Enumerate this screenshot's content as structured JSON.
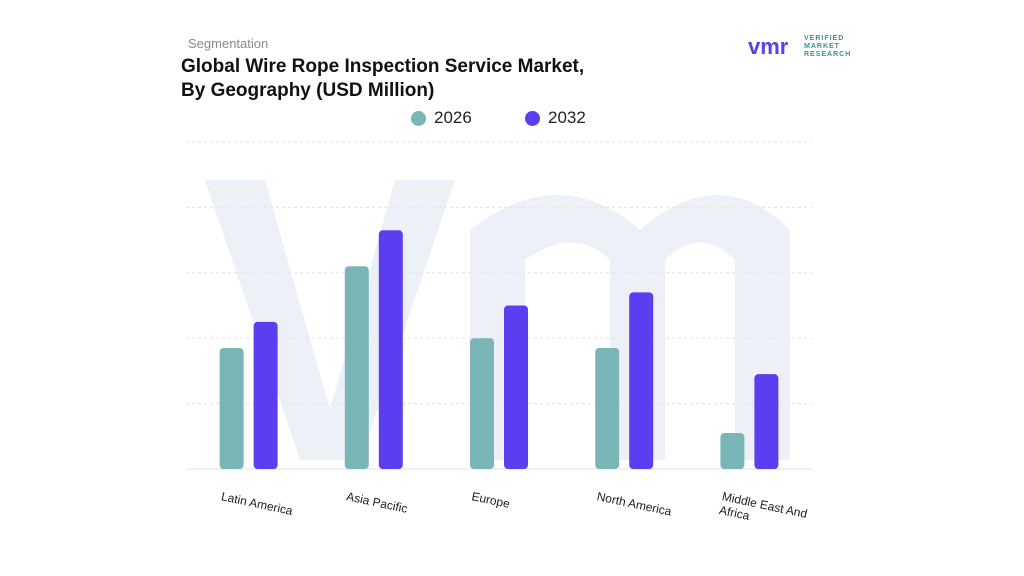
{
  "header": {
    "segment_label": "Segmentation",
    "title_line1": "Global Wire Rope Inspection Service Market,",
    "title_line2": "By Geography (USD Million)"
  },
  "logo": {
    "mark": "vmr",
    "line1": "VERIFIED",
    "line2": "MARKET",
    "line3": "RESEARCH"
  },
  "colors": {
    "series_2026": "#7ab5b8",
    "series_2032": "#5b3ef0",
    "grid": "#e2e2e2",
    "watermark": "#eef0f8"
  },
  "chart_data": {
    "type": "bar",
    "title": "Global Wire Rope Inspection Service Market, By Geography (USD Million)",
    "categories": [
      "Latin America",
      "Asia Pacific",
      "Europe",
      "North America",
      "Middle East And Africa"
    ],
    "series": [
      {
        "name": "2026",
        "values": [
          37,
          62,
          40,
          37,
          11
        ]
      },
      {
        "name": "2032",
        "values": [
          45,
          73,
          50,
          54,
          29
        ]
      }
    ],
    "ylim": [
      0,
      100
    ],
    "grid": true,
    "legend_position": "top-center",
    "xlabel": "",
    "ylabel": ""
  }
}
